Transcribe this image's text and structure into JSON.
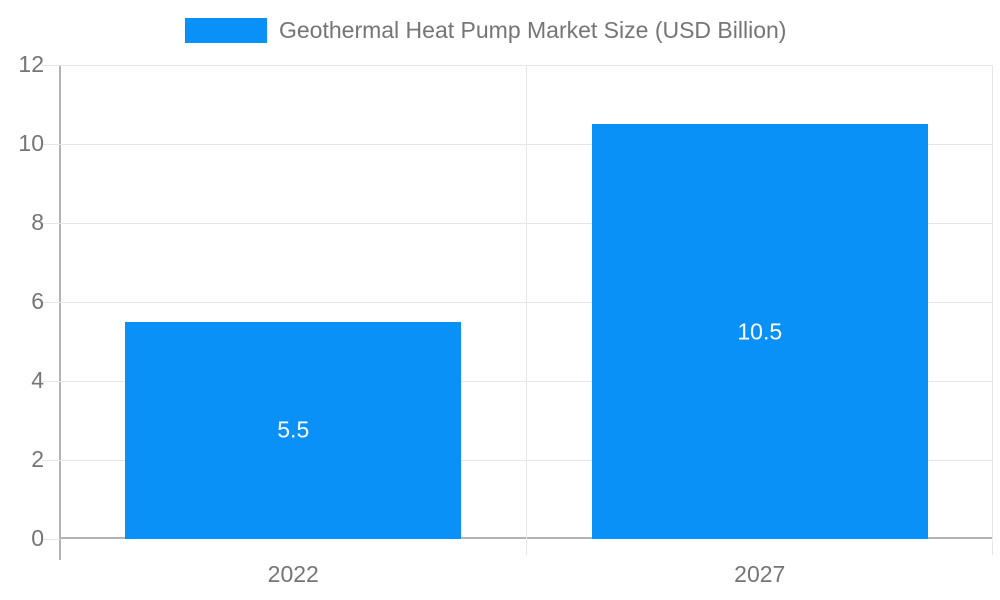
{
  "chart_data": {
    "type": "bar",
    "title": "Geothermal Heat Pump Market Size (USD Billion)",
    "categories": [
      "2022",
      "2027"
    ],
    "values": [
      5.5,
      10.5
    ],
    "bar_labels": [
      "5.5",
      "10.5"
    ],
    "xlabel": "",
    "ylabel": "",
    "ylim": [
      0,
      12
    ],
    "yticks": [
      0,
      2,
      4,
      6,
      8,
      10,
      12
    ],
    "grid": true,
    "legend_position": "top",
    "colors": {
      "bar": "#0991f8",
      "label_text": "#757575",
      "bar_label_text": "#ffffff",
      "gridline": "#e6e6e6",
      "axis_line": "#b3b3b3",
      "background": "#ffffff"
    }
  }
}
